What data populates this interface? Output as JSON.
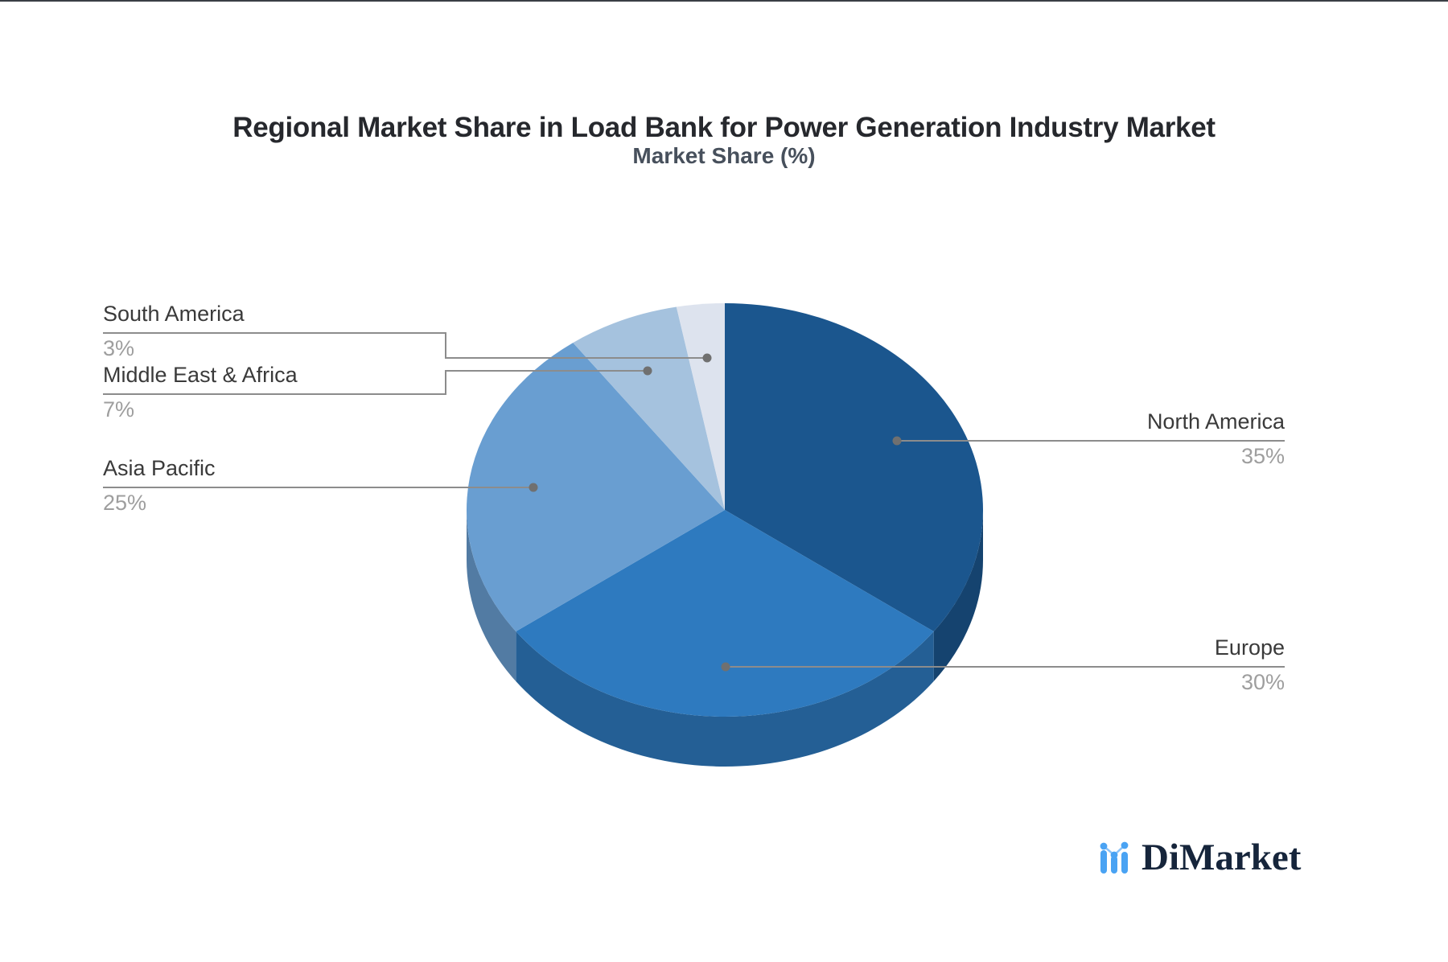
{
  "header": {
    "title": "Regional Market Share in Load Bank for Power Generation Industry Market",
    "subtitle": "Market Share (%)"
  },
  "chart_data": {
    "type": "pie",
    "style": "3d-pie",
    "title": "Regional Market Share in Load Bank for Power Generation Industry Market",
    "subtitle": "Market Share (%)",
    "unit": "%",
    "start_angle": "12-oclock",
    "direction": "clockwise",
    "slices": [
      {
        "name": "North America",
        "value": 35,
        "value_label": "35%",
        "color": "#1B568E"
      },
      {
        "name": "Europe",
        "value": 30,
        "value_label": "30%",
        "color": "#2E7ABF"
      },
      {
        "name": "Asia Pacific",
        "value": 25,
        "value_label": "25%",
        "color": "#699ED1"
      },
      {
        "name": "Middle East & Africa",
        "value": 7,
        "value_label": "7%",
        "color": "#A5C2DE"
      },
      {
        "name": "South America",
        "value": 3,
        "value_label": "3%",
        "color": "#DDE3EE"
      }
    ],
    "layout_hints": {
      "legend": "none",
      "labels": "callout-leader-lines",
      "label_text_color": "#3a3a3a",
      "value_text_color": "#9e9e9e",
      "leader_line_color": "#8c8c8c",
      "depth_3d": true
    }
  },
  "branding": {
    "logo_text": "DiMarket",
    "icon": "bar-chart-trend-icon",
    "icon_color": "#4AA3F3",
    "text_color": "#16253b"
  }
}
